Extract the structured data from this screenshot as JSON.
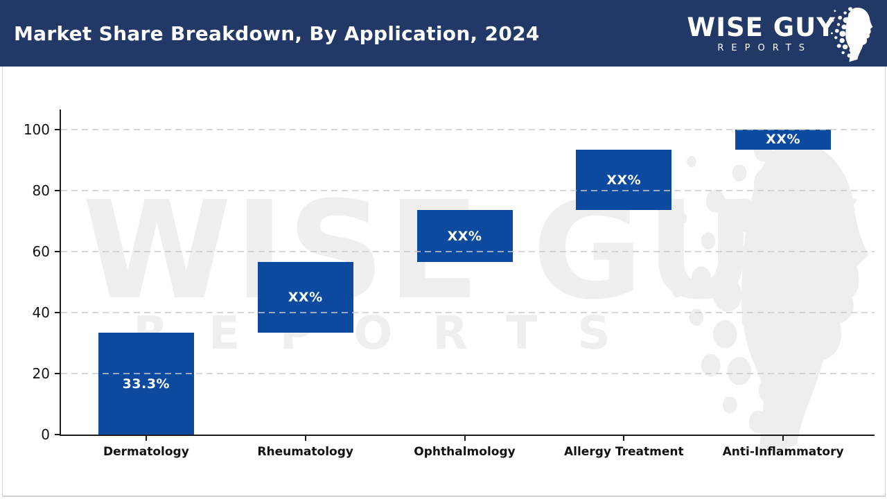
{
  "header": {
    "title": "Market Share Breakdown, By Application, 2024",
    "bg_color": "#223866",
    "logo": {
      "wordmark": "WISE GUY",
      "subtext": "REPORTS"
    }
  },
  "watermark": {
    "wordmark": "WISE GUY",
    "subtext": "REPORTS"
  },
  "chart_data": {
    "type": "bar",
    "subtype": "floating-waterfall",
    "title": "Market Share Breakdown, By Application, 2024",
    "categories": [
      "Dermatology",
      "Rheumatology",
      "Ophthalmology",
      "Allergy Treatment",
      "Anti-Inflammatory"
    ],
    "segments": [
      {
        "category": "Dermatology",
        "start": 0,
        "end": 33.3,
        "label": "33.3%"
      },
      {
        "category": "Rheumatology",
        "start": 33.3,
        "end": 56.5,
        "label": "XX%"
      },
      {
        "category": "Ophthalmology",
        "start": 56.5,
        "end": 73.5,
        "label": "XX%"
      },
      {
        "category": "Allergy Treatment",
        "start": 73.5,
        "end": 93.3,
        "label": "XX%"
      },
      {
        "category": "Anti-Inflammatory",
        "start": 93.3,
        "end": 100,
        "label": "XX%"
      }
    ],
    "xlabel": "",
    "ylabel": "",
    "yticks": [
      0,
      20,
      40,
      60,
      80,
      100
    ],
    "ylim": [
      0,
      106.5
    ],
    "grid": true,
    "grid_style": "dashed",
    "legend": false,
    "bar_color": "#0B4A9E",
    "bar_label_color": "#FFFFFF",
    "grid_color": "#D9D9D9"
  }
}
